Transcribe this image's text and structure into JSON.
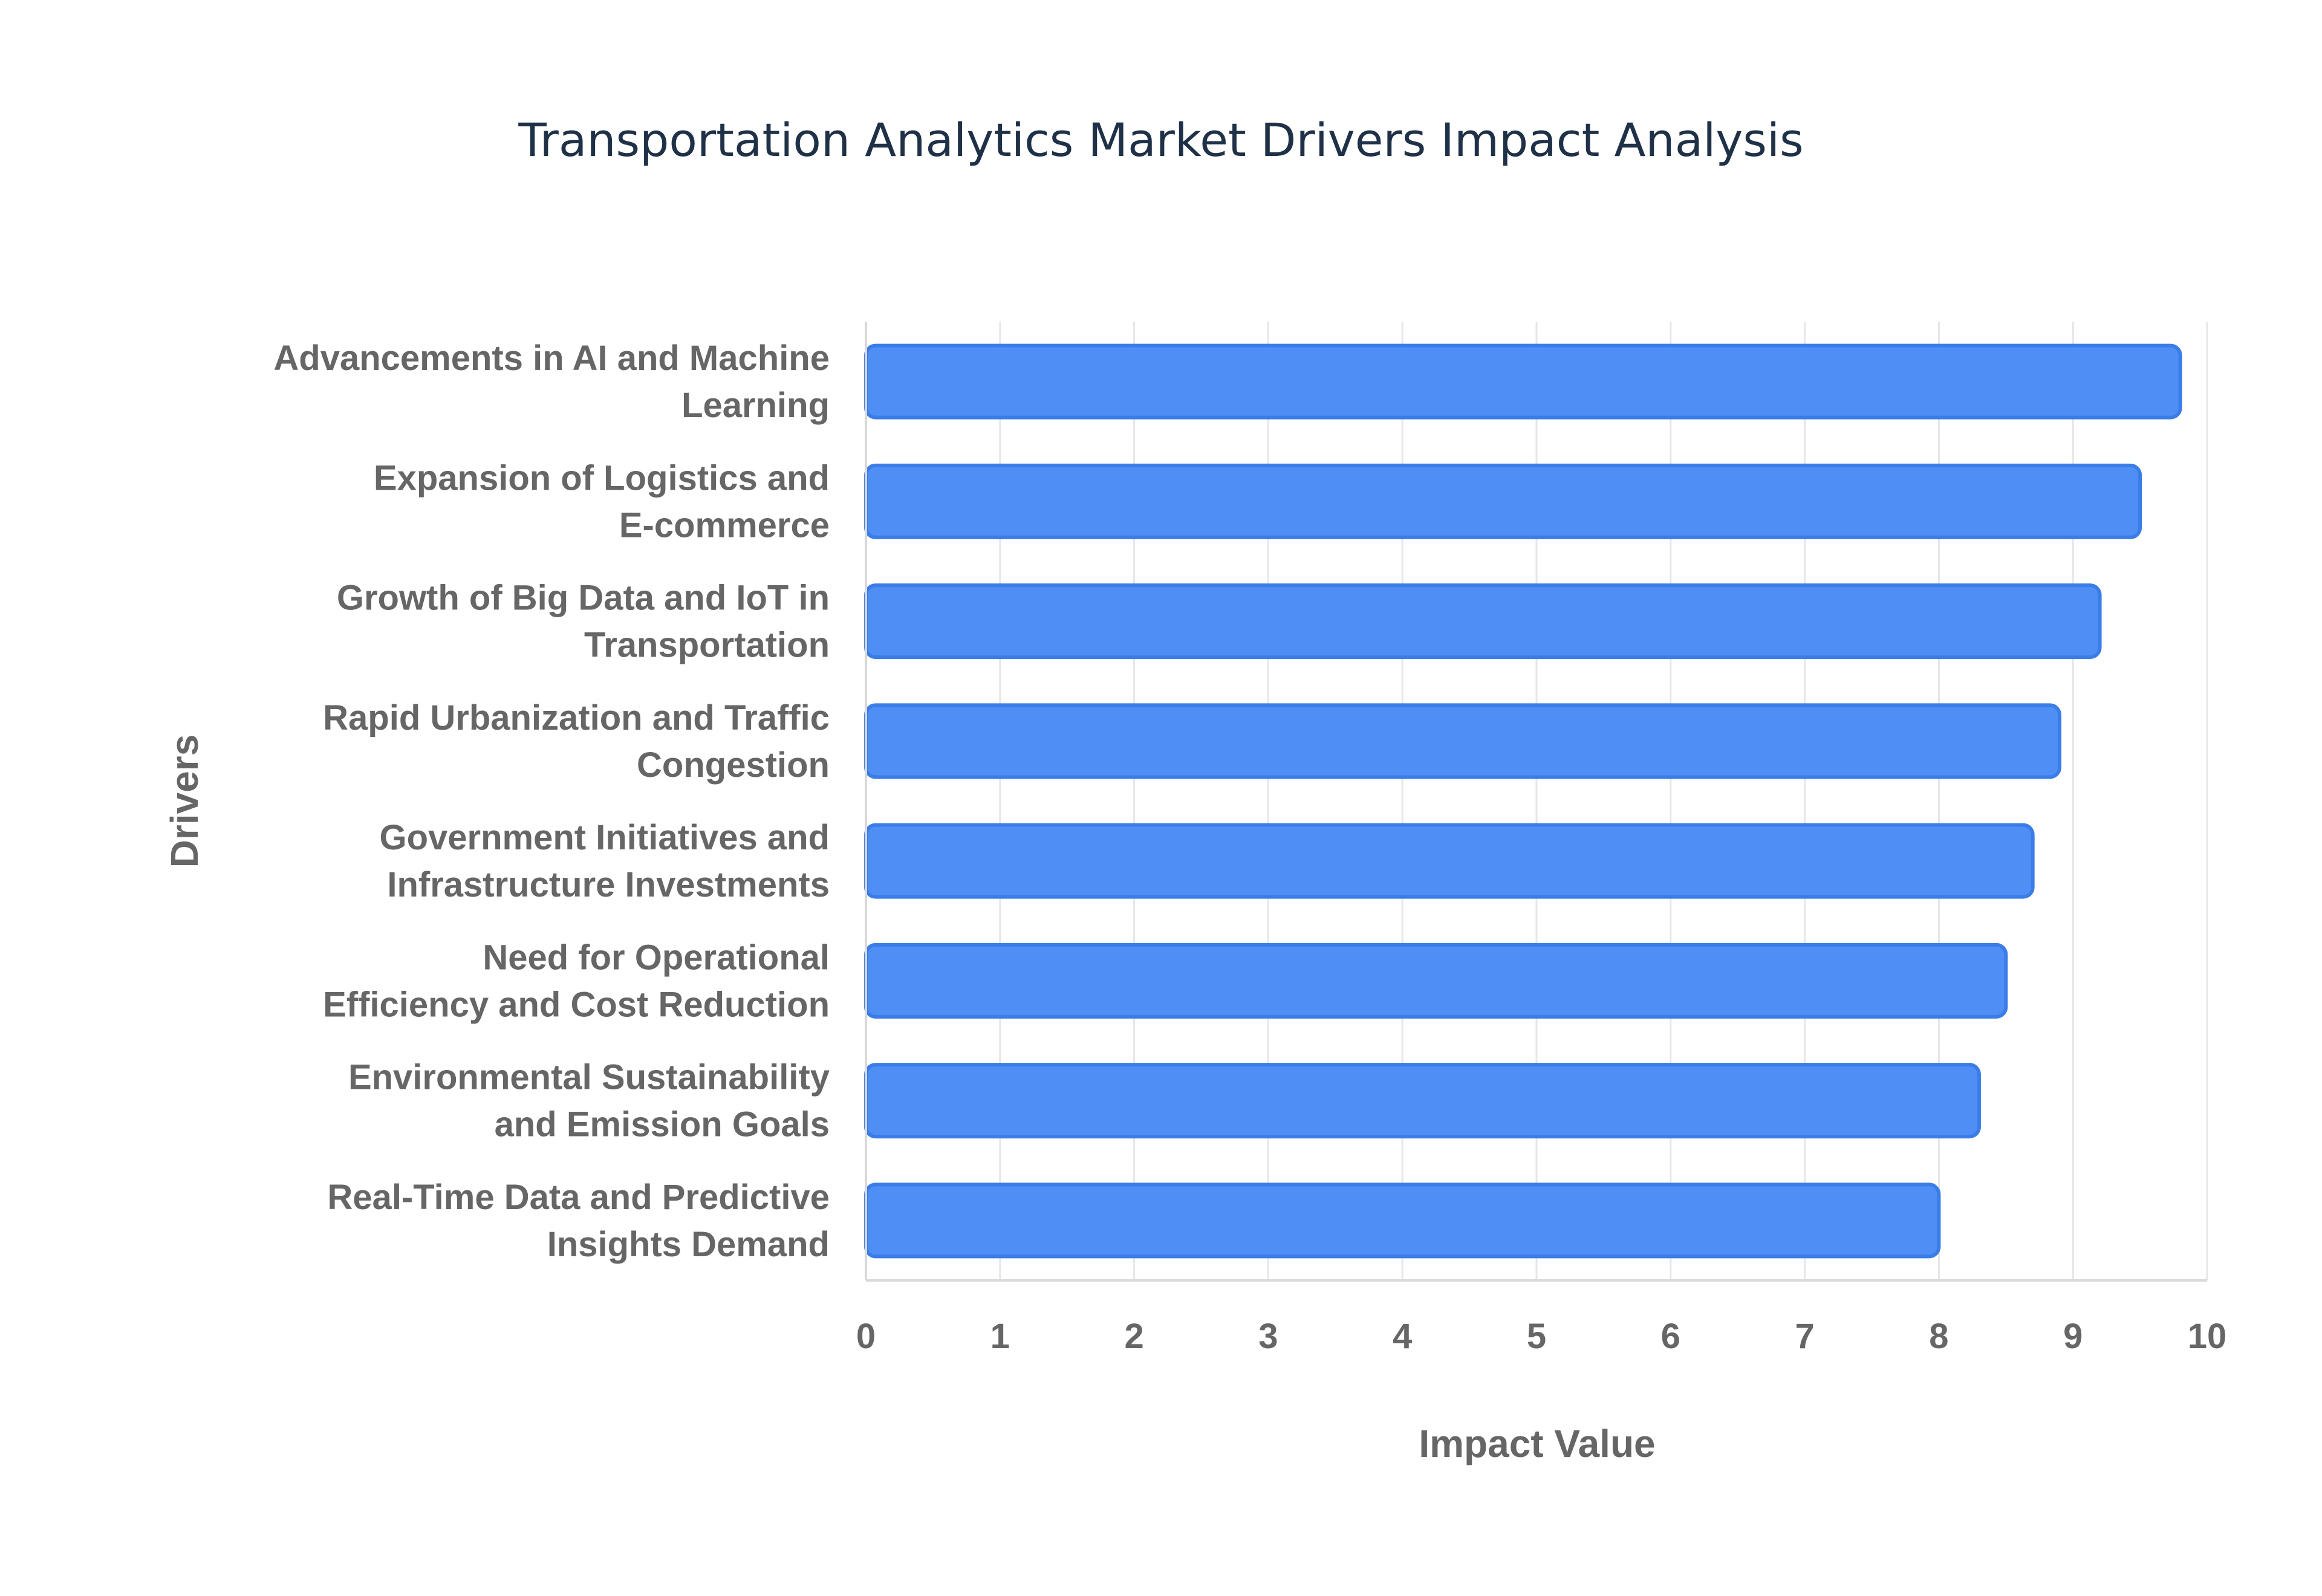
{
  "chart_data": {
    "type": "bar",
    "orientation": "horizontal",
    "title": "Transportation Analytics Market Drivers Impact Analysis",
    "xlabel": "Impact Value",
    "ylabel": "Drivers",
    "xlim": [
      0,
      10
    ],
    "x_ticks": [
      "0",
      "1",
      "2",
      "3",
      "4",
      "5",
      "6",
      "7",
      "8",
      "9",
      "10"
    ],
    "grid": true,
    "legend": "none",
    "categories": [
      [
        "Advancements in AI and Machine",
        "Learning"
      ],
      [
        "Expansion of Logistics and",
        "E-commerce"
      ],
      [
        "Growth of Big Data and IoT in",
        "Transportation"
      ],
      [
        "Rapid Urbanization and Traffic",
        "Congestion"
      ],
      [
        "Government Initiatives and",
        "Infrastructure Investments"
      ],
      [
        "Need for Operational",
        "Efficiency and Cost Reduction"
      ],
      [
        "Environmental Sustainability",
        "and Emission Goals"
      ],
      [
        "Real-Time Data and Predictive",
        "Insights Demand"
      ]
    ],
    "values": [
      9.8,
      9.5,
      9.2,
      8.9,
      8.7,
      8.5,
      8.3,
      8.0
    ],
    "colors": {
      "bar_fill": "#4f8ff5",
      "bar_stroke": "#3a7de8"
    }
  }
}
